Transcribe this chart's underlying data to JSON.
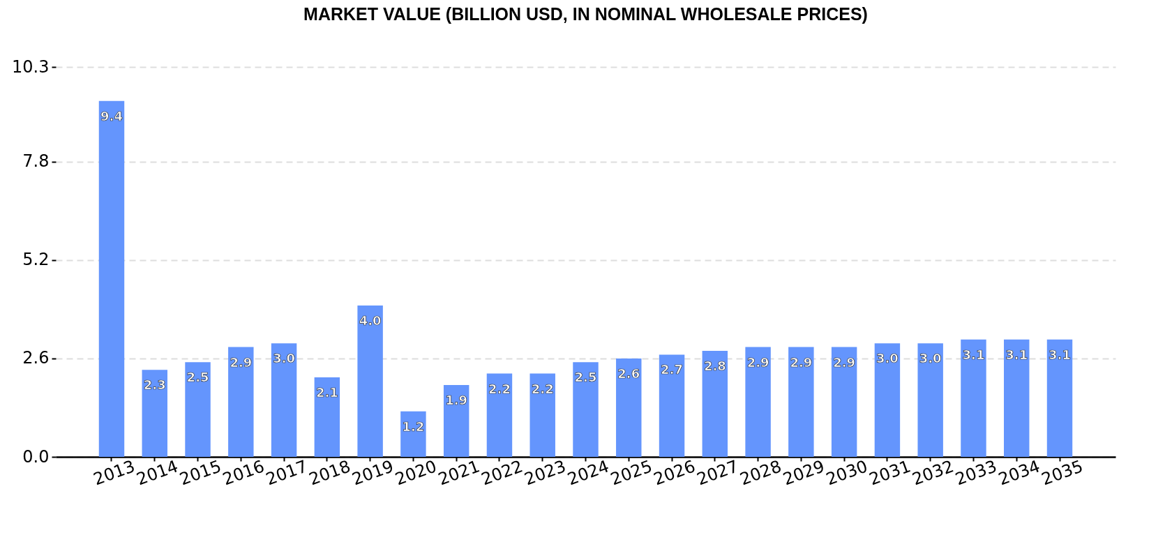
{
  "chart_data": {
    "type": "bar",
    "title": "MARKET VALUE (BILLION USD, IN NOMINAL WHOLESALE PRICES)",
    "categories": [
      "2013",
      "2014",
      "2015",
      "2016",
      "2017",
      "2018",
      "2019",
      "2020",
      "2021",
      "2022",
      "2023",
      "2024",
      "2025",
      "2026",
      "2027",
      "2028",
      "2029",
      "2030",
      "2031",
      "2032",
      "2033",
      "2034",
      "2035"
    ],
    "values": [
      9.4,
      2.3,
      2.5,
      2.9,
      3.0,
      2.1,
      4.0,
      1.2,
      1.9,
      2.2,
      2.2,
      2.5,
      2.6,
      2.7,
      2.8,
      2.9,
      2.9,
      2.9,
      3.0,
      3.0,
      3.1,
      3.1,
      3.1
    ],
    "value_labels": [
      "9.4",
      "2.3",
      "2.5",
      "2.9",
      "3.0",
      "2.1",
      "4.0",
      "1.2",
      "1.9",
      "2.2",
      "2.2",
      "2.5",
      "2.6",
      "2.7",
      "2.8",
      "2.9",
      "2.9",
      "2.9",
      "3.0",
      "3.0",
      "3.1",
      "3.1",
      "3.1"
    ],
    "color": "#6495fd",
    "ylim": [
      0,
      10.3
    ],
    "yticks": [
      {
        "value": 0,
        "label": "0.0"
      },
      2.6,
      5.2,
      7.8,
      10.3
    ],
    "grid": "y"
  }
}
